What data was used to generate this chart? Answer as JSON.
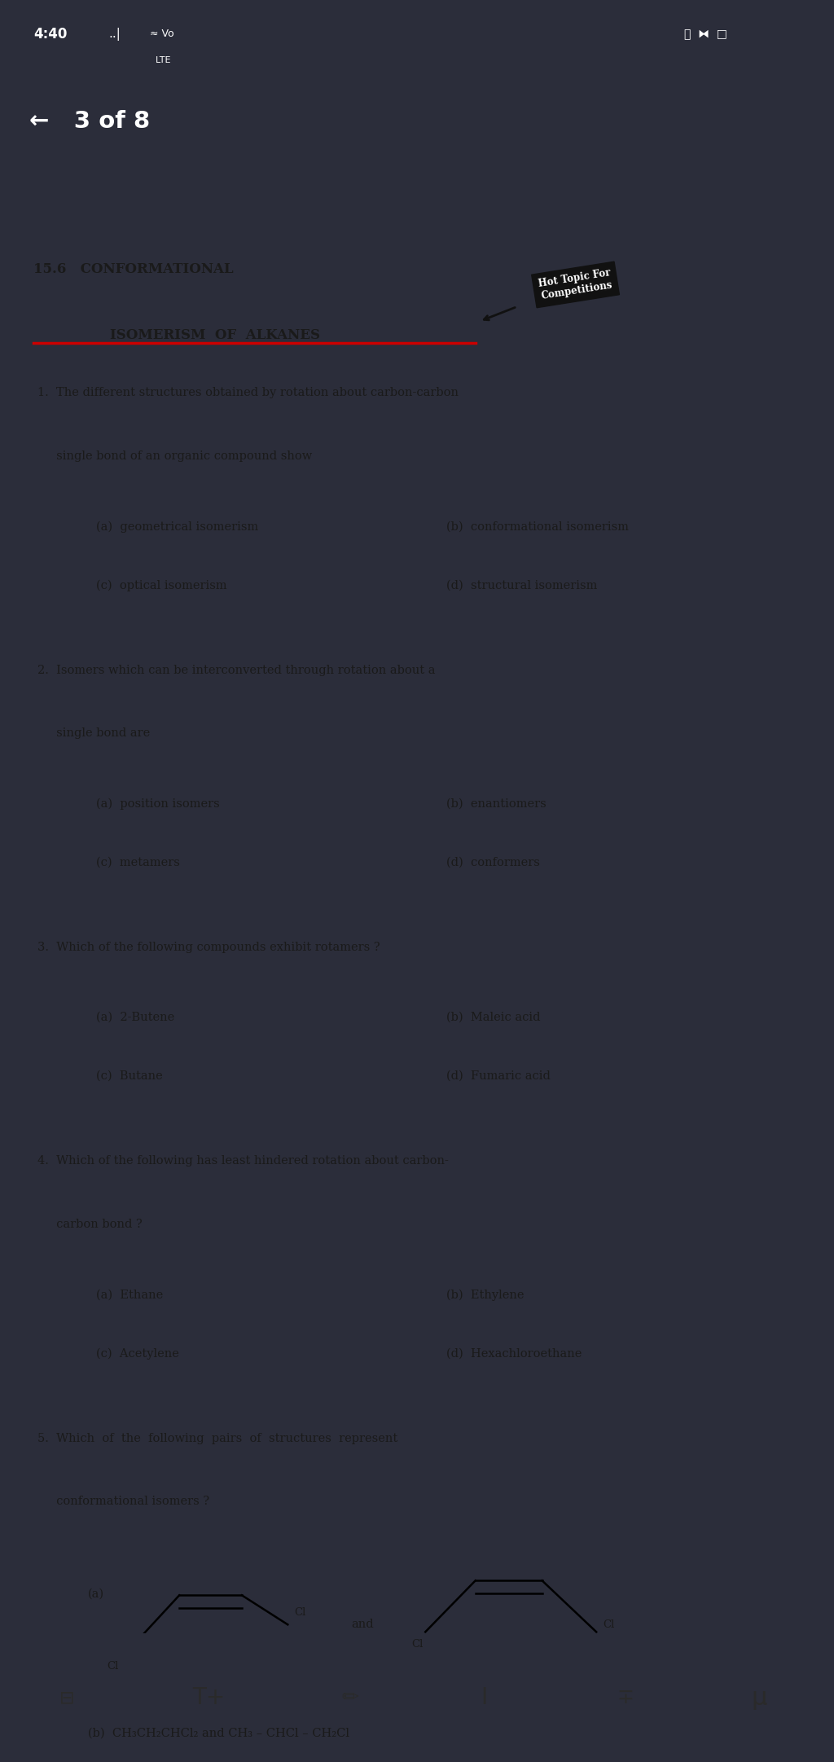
{
  "bg_dark": "#2b2d3a",
  "content_bg": "#f0eeeb",
  "text_dark": "#1a1a1a",
  "red_line": "#cc0000",
  "status_time": "4:40",
  "nav_label": "3 of 8",
  "section_num": "15.6",
  "title_line1": "CONFORMATIONAL",
  "title_line2": "ISOMERISM  OF  ALKANES",
  "hot1": "Hot Topic For",
  "hot2": "Competitions",
  "q1_text1": "1.  The different structures obtained by rotation about carbon-carbon",
  "q1_text2": "     single bond of an organic compound show",
  "q1_a": "(a)  geometrical isomerism",
  "q1_b": "(b)  conformational isomerism",
  "q1_c": "(c)  optical isomerism",
  "q1_d": "(d)  structural isomerism",
  "q2_text1": "2.  Isomers which can be interconverted through rotation about a",
  "q2_text2": "     single bond are",
  "q2_a": "(a)  position isomers",
  "q2_b": "(b)  enantiomers",
  "q2_c": "(c)  metamers",
  "q2_d": "(d)  conformers",
  "q3_text1": "3.  Which of the following compounds exhibit rotamers ?",
  "q3_a": "(a)  2-Butene",
  "q3_b": "(b)  Maleic acid",
  "q3_c": "(c)  Butane",
  "q3_d": "(d)  Fumaric acid",
  "q4_text1": "4.  Which of the following has least hindered rotation about carbon-",
  "q4_text2": "     carbon bond ?",
  "q4_a": "(a)  Ethane",
  "q4_b": "(b)  Ethylene",
  "q4_c": "(c)  Acetylene",
  "q4_d": "(d)  Hexachloroethane",
  "q5_text1": "5.  Which  of  the  following  pairs  of  structures  represent",
  "q5_text2": "     conformational isomers ?",
  "q5_a_label": "(a)",
  "q5_and": "and",
  "q5_b": "(b)  CH₃CH₂CHCl₂ and CH₃ – CHCl – CH₂Cl",
  "toolbar_bg": "#d0cfcb"
}
